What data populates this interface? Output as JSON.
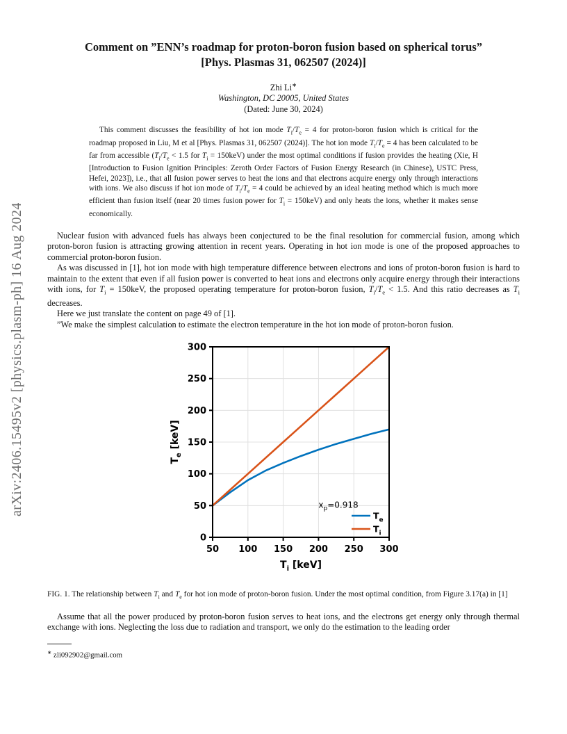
{
  "stamp": {
    "text": "arXiv:2406.15495v2  [physics.plasm-ph]  16 Aug 2024"
  },
  "header": {
    "title_line1": "Comment on ”ENN’s roadmap for proton-boron fusion based on spherical torus”",
    "title_line2": "[Phys. Plasmas 31, 062507 (2024)]",
    "author": "Zhi Li",
    "author_mark": "∗",
    "affiliation": "Washington, DC 20005, United States",
    "date": "(Dated: June 30, 2024)"
  },
  "abstract": "This comment discusses the feasibility of hot ion mode T_{i}/T_{e} = 4 for proton-boron fusion which is critical for the roadmap proposed in Liu, M et al [Phys. Plasmas 31, 062507 (2024)]. The hot ion mode T_{i}/T_{e} = 4 has been calculated to be far from accessible (T_{i}/T_{e} < 1.5 for T_{i} = 150keV) under the most optimal conditions if fusion provides the heating (Xie, H [Introduction to Fusion Ignition Principles: Zeroth Order Factors of Fusion Energy Research (in Chinese), USTC Press, Hefei, 2023]), i.e., that all fusion power serves to heat the ions and that electrons acquire energy only through interactions with ions. We also discuss if hot ion mode of T_{i}/T_{e} = 4 could be achieved by an ideal heating method which is much more efficient than fusion itself (near 20 times fusion power for T_{i} = 150keV) and only heats the ions, whether it makes sense economically.",
  "body": {
    "para1": "Nuclear fusion with advanced fuels has always been conjectured to be the final resolution for commercial fusion, among which proton-boron fusion is attracting growing attention in recent years. Operating in hot ion mode is one of the proposed approaches to commercial proton-boron fusion.",
    "para2": "As was discussed in [1], hot ion mode with high temperature difference between electrons and ions of proton-boron fusion is hard to maintain to the extent that even if all fusion power is converted to heat ions and electrons only acquire energy through their interactions with ions, for T_{i} = 150keV, the proposed operating temperature for proton-boron fusion, T_{i}/T_{e} < 1.5. And this ratio decreases as T_{i} decreases.",
    "para3": "Here we just translate the content on page 49 of [1].",
    "para4": "”We make the simplest calculation to estimate the electron temperature in the hot ion mode of proton-boron fusion."
  },
  "figure": {
    "caption": "FIG. 1. The relationship between T_{i} and T_{e} for hot ion mode of proton-boron fusion. Under the most optimal condition, from Figure 3.17(a) in [1]"
  },
  "after_figure": "Assume that all the power produced by proton-boron fusion serves to heat ions, and the electrons get energy only through thermal exchange with ions. Neglecting the loss due to radiation and transport, we only do the estimation to the leading order",
  "footnote": {
    "marker": "∗",
    "text": "zli092902@gmail.com"
  },
  "chart_data": {
    "type": "line",
    "title": "",
    "xlabel": {
      "base": "T",
      "sub": "i",
      "unit": " [keV]"
    },
    "ylabel": {
      "base": "T",
      "sub": "e",
      "unit": " [keV]"
    },
    "xlim": [
      50,
      300
    ],
    "ylim": [
      0,
      300
    ],
    "xticks": [
      50,
      100,
      150,
      200,
      250,
      300
    ],
    "yticks": [
      0,
      50,
      100,
      150,
      200,
      250,
      300
    ],
    "grid": true,
    "legend_position": "bottom-right",
    "annotation": {
      "base": "x",
      "sub": "p",
      "rest": "=0.918",
      "x": 200,
      "y": 50
    },
    "x": [
      50,
      75,
      100,
      125,
      150,
      175,
      200,
      225,
      250,
      275,
      300
    ],
    "series": [
      {
        "name": {
          "base": "T",
          "sub": "e"
        },
        "color": "#0072BD",
        "values": [
          50,
          71,
          90,
          105,
          117,
          128,
          138,
          147,
          155,
          163,
          170
        ]
      },
      {
        "name": {
          "base": "T",
          "sub": "i"
        },
        "color": "#D95319",
        "values": [
          50,
          75,
          100,
          125,
          150,
          175,
          200,
          225,
          250,
          275,
          300
        ]
      }
    ],
    "axis_color": "#000000",
    "grid_color": "#e0e0e0"
  }
}
